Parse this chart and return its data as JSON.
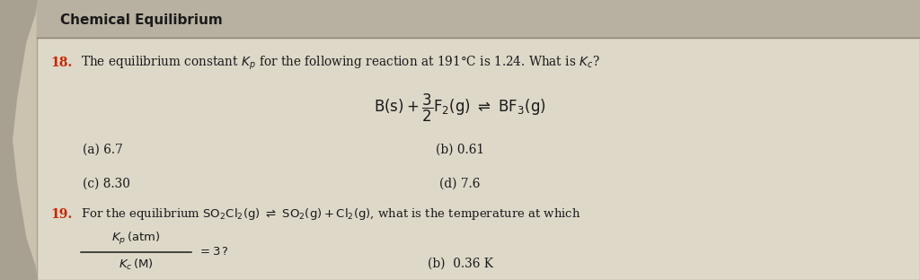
{
  "bg_color": "#cbc3b0",
  "page_bg": "#ddd8c8",
  "header_text": "Chemical Equilibrium",
  "header_color": "#1a1a1a",
  "header_bg": "#b8b0a0",
  "text_color": "#1a1a1a",
  "number_color": "#cc2200",
  "opt_a": "(a) 6.7",
  "opt_b": "(b) 0.61",
  "opt_c": "(c) 8.30",
  "opt_d": "(d) 7.6",
  "q19_opt_b": "(b)  0.36 K",
  "degree_symbol": "°"
}
